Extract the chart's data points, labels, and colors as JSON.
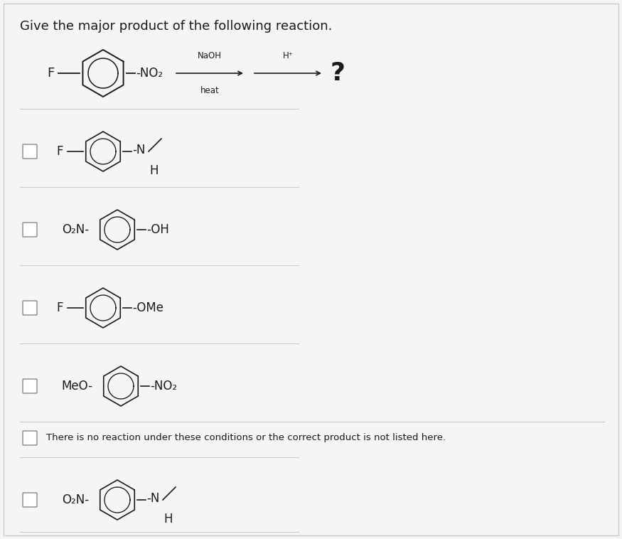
{
  "title": "Give the major product of the following reaction.",
  "background_color": "#f5f5f5",
  "text_color": "#1a1a1a",
  "question_reaction": {
    "reactant_left": "F",
    "reactant_right": "NO₂",
    "reagent1": "NaOH",
    "reagent2": "H⁺",
    "reagent3": "heat",
    "product": "?"
  },
  "options": [
    {
      "id": "A",
      "left": "F",
      "right": "-N\\\nH",
      "right_label": "NH",
      "type": "F-benzene-NH"
    },
    {
      "id": "B",
      "left": "O₂N-",
      "right": "-OH",
      "type": "O2N-benzene-OH"
    },
    {
      "id": "C",
      "left": "F-",
      "right": "-OMe",
      "type": "F-benzene-OMe"
    },
    {
      "id": "D",
      "left": "MeO-",
      "right": "-NO₂",
      "type": "MeO-benzene-NO2"
    },
    {
      "id": "E",
      "text": "There is no reaction under these conditions or the correct product is not listed here.",
      "type": "text"
    },
    {
      "id": "F",
      "left": "O₂N-",
      "right": "-N\\\nH",
      "type": "O2N-benzene-NH"
    }
  ]
}
